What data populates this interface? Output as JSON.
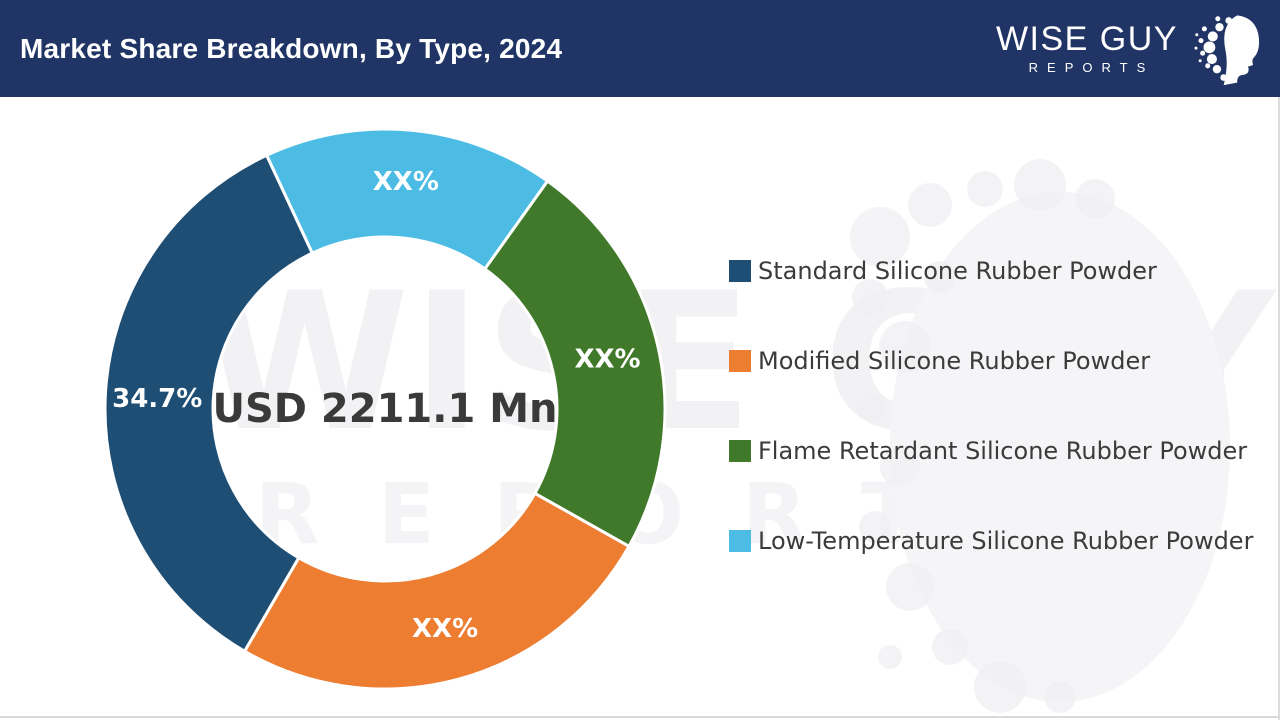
{
  "header": {
    "title": "Market Share Breakdown, By Type, 2024",
    "background_color": "#203565",
    "logo": {
      "line1": "WISE GUY",
      "line2": "REPORTS"
    }
  },
  "watermark": {
    "line1": "WISE GUY",
    "line2": "REPORTS"
  },
  "chart_data": {
    "type": "pie",
    "subtype": "donut",
    "title": "Market Share Breakdown, By Type, 2024",
    "center_label": "USD 2211.1 Mn",
    "start_angle_deg": 115,
    "direction": "counterclockwise",
    "legend_position": "right",
    "gridlines": false,
    "segments": [
      {
        "label": "Standard Silicone Rubber Powder",
        "value_pct_est": 34.7,
        "display_label": "34.7%",
        "color": "#1F4E74"
      },
      {
        "label": "Modified Silicone Rubber Powder",
        "value_pct_est": 25.2,
        "display_label": "XX%",
        "color": "#ED7D31"
      },
      {
        "label": "Flame Retardant Silicone Rubber Powder",
        "value_pct_est": 23.3,
        "display_label": "XX%",
        "color": "#41792B"
      },
      {
        "label": "Low-Temperature Silicone Rubber Powder",
        "value_pct_est": 16.8,
        "display_label": "XX%",
        "color": "#4DBCE4"
      }
    ]
  }
}
